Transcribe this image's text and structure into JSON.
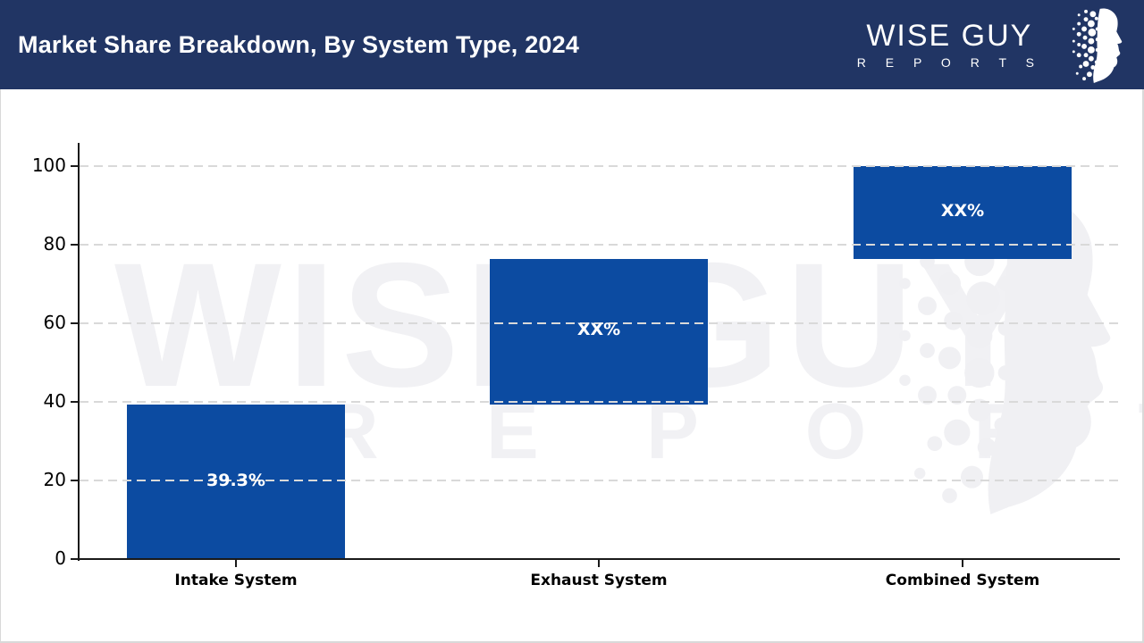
{
  "header": {
    "title": "Market Share Breakdown, By System Type, 2024",
    "logo_line1": "WISE GUY",
    "logo_line2": "R E P O R T S"
  },
  "watermark": {
    "line1": "WISE GUY",
    "line2": "R E P O R T S"
  },
  "colors": {
    "header_bg": "#213564",
    "bar": "#0c4ba1",
    "grid": "#d9d9d9",
    "axis": "#1a1a1a",
    "bar_label_text": "#ffffff",
    "watermark": "#f1f1f4"
  },
  "chart_data": {
    "type": "bar",
    "style": "waterfall",
    "title": "Market Share Breakdown, By System Type, 2024",
    "categories": [
      "Intake System",
      "Exhaust System",
      "Combined System"
    ],
    "segments": [
      {
        "category": "Intake System",
        "start": 0,
        "end": 39.3,
        "label": "39.3%"
      },
      {
        "category": "Exhaust System",
        "start": 39.3,
        "end": 76.4,
        "label": "XX%"
      },
      {
        "category": "Combined System",
        "start": 76.4,
        "end": 100,
        "label": "XX%"
      }
    ],
    "xlabel": "",
    "ylabel": "",
    "yticks": [
      0,
      20,
      40,
      60,
      80,
      100
    ],
    "ylim": [
      0,
      105
    ],
    "grid": "horizontal-dashed",
    "legend": "none"
  }
}
